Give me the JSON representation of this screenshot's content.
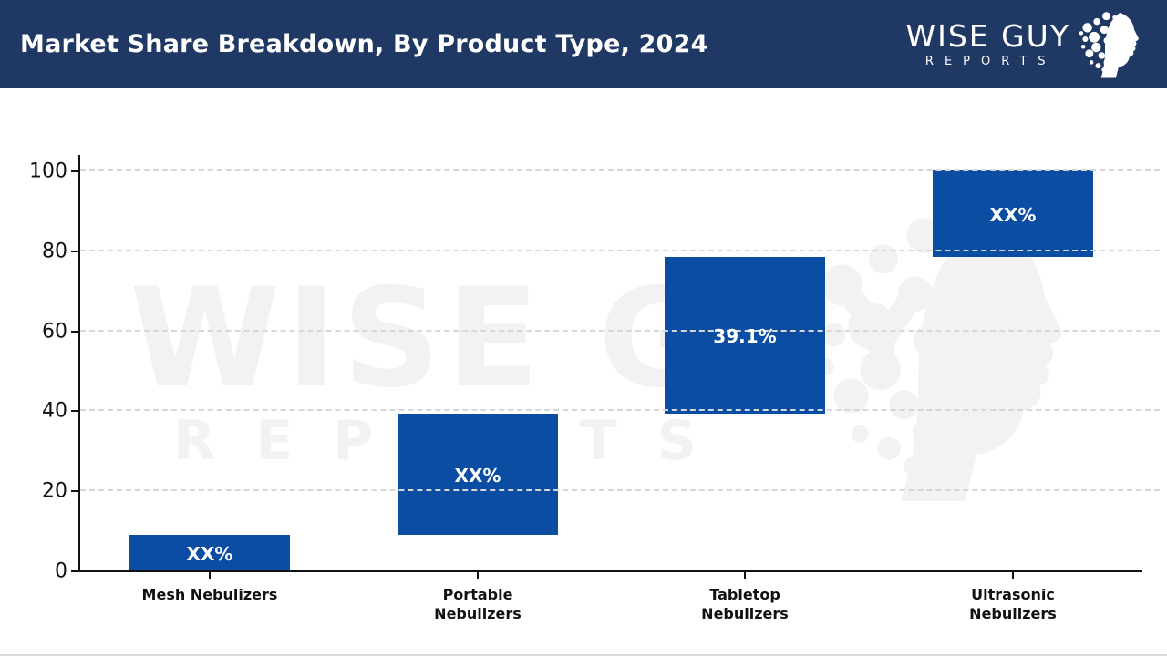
{
  "header": {
    "title": "Market Share Breakdown, By Product Type, 2024",
    "bg_color": "#1f3864",
    "logo": {
      "line1": "WISE GUY",
      "line2": "REPORTS"
    }
  },
  "watermark": {
    "line1": "WISE GUY",
    "line2": "REPORTS"
  },
  "chart_data": {
    "type": "bar",
    "variant": "waterfall-stacked-breakdown",
    "title": "Market Share Breakdown, By Product Type, 2024",
    "categories": [
      "Mesh Nebulizers",
      "Portable\nNebulizers",
      "Tabletop\nNebulizers",
      "Ultrasonic\nNebulizers"
    ],
    "segments": [
      {
        "category": "Mesh Nebulizers",
        "start": 0,
        "end": 8.8,
        "height": 8.8,
        "value_label": "XX%"
      },
      {
        "category": "Portable Nebulizers",
        "start": 8.8,
        "end": 39.2,
        "height": 30.4,
        "value_label": "XX%"
      },
      {
        "category": "Tabletop Nebulizers",
        "start": 39.2,
        "end": 78.3,
        "height": 39.1,
        "value_label": "39.1%"
      },
      {
        "category": "Ultrasonic Nebulizers",
        "start": 78.3,
        "end": 100,
        "height": 21.7,
        "value_label": "XX%"
      }
    ],
    "y_ticks": [
      0,
      20,
      40,
      60,
      80,
      100
    ],
    "ylim": [
      0,
      104
    ],
    "xlabel": "",
    "ylabel": "",
    "grid": "horizontal-dashed",
    "grid_above_bars": true,
    "legend": "none",
    "bar_color": "#0b4da2",
    "label_color": "#ffffff",
    "axis_color": "#111111",
    "grid_color": "#d7d7d7",
    "watermark_color": "#f2f2f2"
  }
}
